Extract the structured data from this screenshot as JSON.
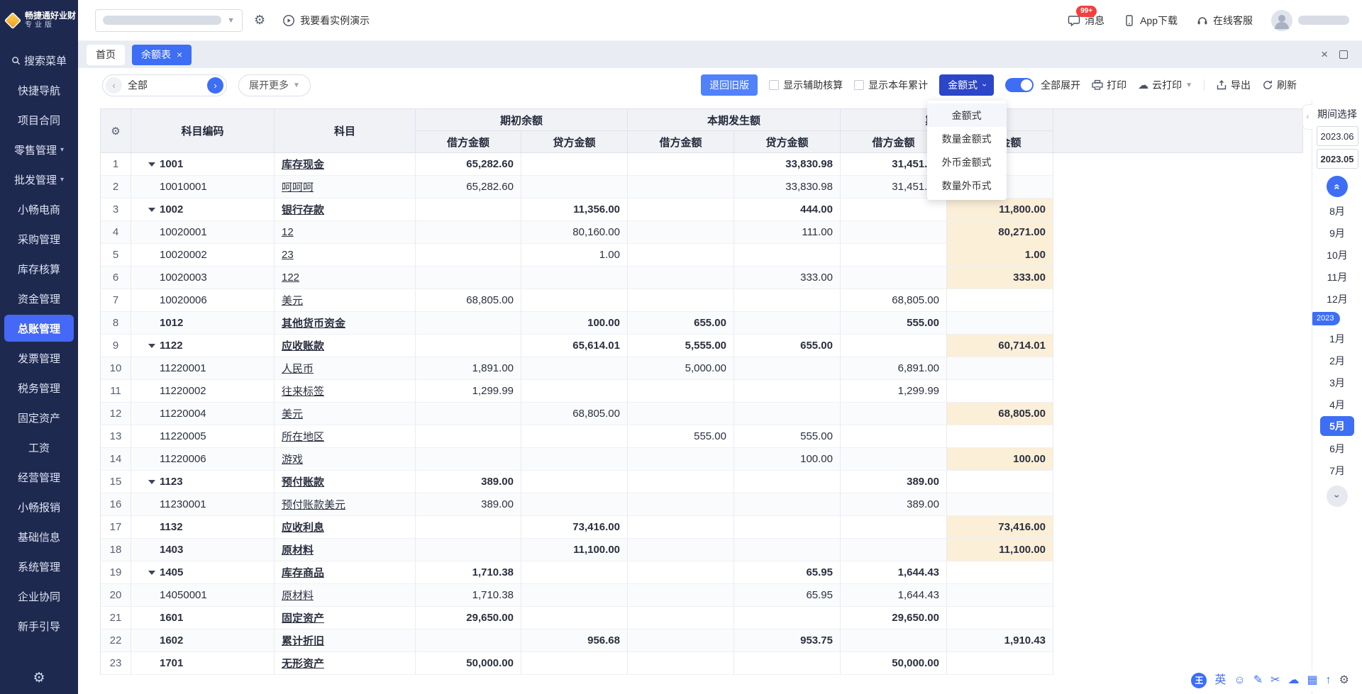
{
  "colors": {
    "accent": "#3d6ef5",
    "sidebar_bg": "#1e2950",
    "format_button_bg": "#2b46c8",
    "back_button_bg": "#5181fb",
    "warning_cell_bg": "#fcefd8",
    "table_header_bg": "#f0f2f6",
    "badge_red": "#f53f3f"
  },
  "app": {
    "logo_title": "畅捷通好业财",
    "logo_subtitle": "专业版"
  },
  "topbar": {
    "demo_link": "我要看实例演示",
    "messages_label": "消息",
    "messages_badge": "99+",
    "app_download_label": "App下载",
    "support_label": "在线客服"
  },
  "sidebar": {
    "items": [
      {
        "label": "搜索菜单",
        "icon": "search"
      },
      {
        "label": "快捷导航"
      },
      {
        "label": "项目合同"
      },
      {
        "label": "零售管理",
        "expandable": true
      },
      {
        "label": "批发管理",
        "expandable": true
      },
      {
        "label": "小畅电商"
      },
      {
        "label": "采购管理"
      },
      {
        "label": "库存核算"
      },
      {
        "label": "资金管理"
      },
      {
        "label": "总账管理",
        "active": true
      },
      {
        "label": "发票管理"
      },
      {
        "label": "税务管理"
      },
      {
        "label": "固定资产"
      },
      {
        "label": "工资"
      },
      {
        "label": "经营管理"
      },
      {
        "label": "小畅报销"
      },
      {
        "label": "基础信息"
      },
      {
        "label": "系统管理"
      },
      {
        "label": "企业协同"
      },
      {
        "label": "新手引导"
      }
    ]
  },
  "tabs": [
    {
      "label": "首页",
      "active": false,
      "closable": false
    },
    {
      "label": "余额表",
      "active": true,
      "closable": true
    }
  ],
  "toolbar": {
    "subject_selector": "全部",
    "expand_more": "展开更多",
    "back_to_old": "退回旧版",
    "checkbox_aux": "显示辅助核算",
    "checkbox_ytd": "显示本年累计",
    "format_button": "金额式",
    "format_menu": [
      "金额式",
      "数量金额式",
      "外币金额式",
      "数量外币式"
    ],
    "expand_all": "全部展开",
    "print": "打印",
    "cloud_print": "云打印",
    "export": "导出",
    "refresh": "刷新"
  },
  "table": {
    "col_code": "科目编码",
    "col_subject": "科目",
    "group_opening": "期初余额",
    "group_current": "本期发生额",
    "group_ending": "期末余额",
    "sub_debit": "借方金额",
    "sub_credit": "贷方金额",
    "rows": [
      {
        "num": 1,
        "code": "1001",
        "name": "库存现金",
        "expand": true,
        "bold": true,
        "obd": "65,282.60",
        "cc": "33,830.98",
        "ed": "31,451.62"
      },
      {
        "num": 2,
        "code": "10010001",
        "name": "呵呵呵",
        "obd": "65,282.60",
        "cc": "33,830.98",
        "ed": "31,451.62"
      },
      {
        "num": 3,
        "code": "1002",
        "name": "银行存款",
        "expand": true,
        "bold": true,
        "obc": "11,356.00",
        "cc": "444.00",
        "ec": "11,800.00",
        "hl": true
      },
      {
        "num": 4,
        "code": "10020001",
        "name": "12",
        "obc": "80,160.00",
        "cc": "111.00",
        "ec": "80,271.00",
        "hl": true
      },
      {
        "num": 5,
        "code": "10020002",
        "name": "23",
        "obc": "1.00",
        "ec": "1.00",
        "hl": true
      },
      {
        "num": 6,
        "code": "10020003",
        "name": "122",
        "cc": "333.00",
        "ec": "333.00",
        "hl": true
      },
      {
        "num": 7,
        "code": "10020006",
        "name": "美元",
        "obd": "68,805.00",
        "ed": "68,805.00"
      },
      {
        "num": 8,
        "code": "1012",
        "name": "其他货币资金",
        "bold": true,
        "obc": "100.00",
        "cd": "655.00",
        "ed": "555.00"
      },
      {
        "num": 9,
        "code": "1122",
        "name": "应收账款",
        "expand": true,
        "bold": true,
        "obc": "65,614.01",
        "cd": "5,555.00",
        "cc": "655.00",
        "ec": "60,714.01",
        "hl": true
      },
      {
        "num": 10,
        "code": "11220001",
        "name": "人民币",
        "obd": "1,891.00",
        "cd": "5,000.00",
        "ed": "6,891.00"
      },
      {
        "num": 11,
        "code": "11220002",
        "name": "往来标签",
        "obd": "1,299.99",
        "ed": "1,299.99"
      },
      {
        "num": 12,
        "code": "11220004",
        "name": "美元",
        "obc": "68,805.00",
        "ec": "68,805.00",
        "hl": true
      },
      {
        "num": 13,
        "code": "11220005",
        "name": "所在地区",
        "cd": "555.00",
        "cc": "555.00"
      },
      {
        "num": 14,
        "code": "11220006",
        "name": "游戏",
        "cc": "100.00",
        "ec": "100.00",
        "hl": true
      },
      {
        "num": 15,
        "code": "1123",
        "name": "预付账款",
        "expand": true,
        "bold": true,
        "obd": "389.00",
        "ed": "389.00"
      },
      {
        "num": 16,
        "code": "11230001",
        "name": "预付账款美元",
        "obd": "389.00",
        "ed": "389.00"
      },
      {
        "num": 17,
        "code": "1132",
        "name": "应收利息",
        "bold": true,
        "obc": "73,416.00",
        "ec": "73,416.00",
        "hl": true
      },
      {
        "num": 18,
        "code": "1403",
        "name": "原材料",
        "bold": true,
        "obc": "11,100.00",
        "ec": "11,100.00",
        "hl": true
      },
      {
        "num": 19,
        "code": "1405",
        "name": "库存商品",
        "expand": true,
        "bold": true,
        "obd": "1,710.38",
        "cc": "65.95",
        "ed": "1,644.43"
      },
      {
        "num": 20,
        "code": "14050001",
        "name": "原材料",
        "obd": "1,710.38",
        "cc": "65.95",
        "ed": "1,644.43"
      },
      {
        "num": 21,
        "code": "1601",
        "name": "固定资产",
        "bold": true,
        "obd": "29,650.00",
        "ed": "29,650.00"
      },
      {
        "num": 22,
        "code": "1602",
        "name": "累计折旧",
        "bold": true,
        "obc": "956.68",
        "cc": "953.75",
        "ec": "1,910.43"
      },
      {
        "num": 23,
        "code": "1701",
        "name": "无形资产",
        "bold": true,
        "obd": "50,000.00",
        "ed": "50,000.00"
      }
    ]
  },
  "period_panel": {
    "title": "期间选择",
    "period_from": "2023.06",
    "period_to": "2023.05",
    "year_badge": "2023",
    "months": [
      "8月",
      "9月",
      "10月",
      "11月",
      "12月",
      "1月",
      "2月",
      "3月",
      "4月",
      "5月",
      "6月",
      "7月"
    ],
    "selected_month": "5月"
  },
  "ime": {
    "icons": [
      {
        "name": "ime-logo-icon",
        "glyph": "王",
        "logo": true
      },
      {
        "name": "ime-language-icon",
        "glyph": "英"
      },
      {
        "name": "ime-emoji-icon",
        "glyph": "☺"
      },
      {
        "name": "ime-handwriting-icon",
        "glyph": "✎"
      },
      {
        "name": "ime-clip-icon",
        "glyph": "✂"
      },
      {
        "name": "ime-cloud-icon",
        "glyph": "☁"
      },
      {
        "name": "ime-keyboard-icon",
        "glyph": "▦"
      },
      {
        "name": "ime-toolbox-icon",
        "glyph": "↑"
      },
      {
        "name": "ime-settings-icon",
        "glyph": "⚙"
      }
    ]
  }
}
